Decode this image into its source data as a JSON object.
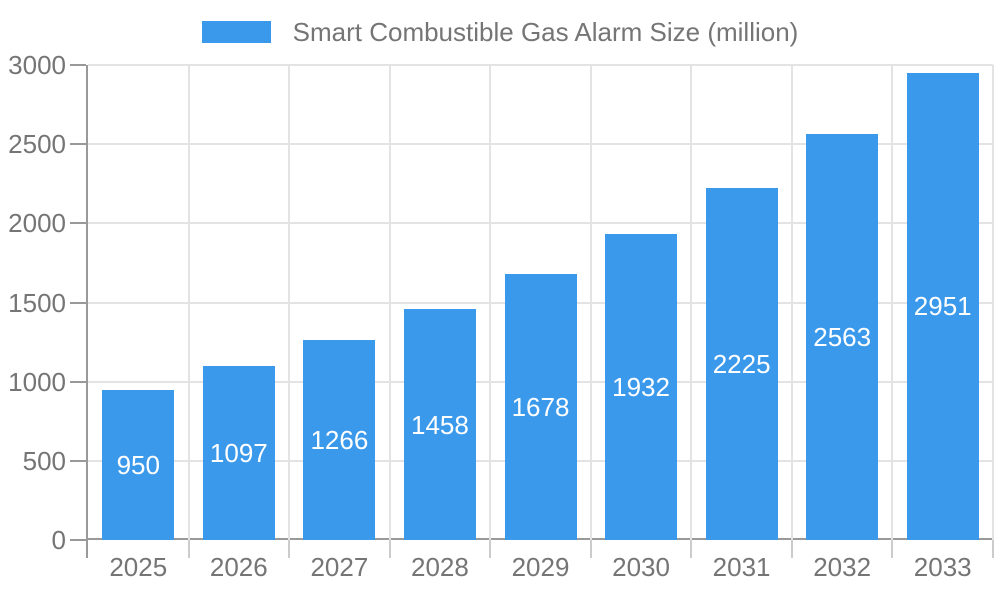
{
  "legend": {
    "label": "Smart Combustible Gas Alarm Size (million)"
  },
  "chart_data": {
    "type": "bar",
    "title": "Smart Combustible Gas Alarm Size (million)",
    "categories": [
      "2025",
      "2026",
      "2027",
      "2028",
      "2029",
      "2030",
      "2031",
      "2032",
      "2033"
    ],
    "values": [
      950,
      1097,
      1266,
      1458,
      1678,
      1932,
      2225,
      2563,
      2951
    ],
    "xlabel": "",
    "ylabel": "",
    "ylim": [
      0,
      3000
    ],
    "yticks": [
      0,
      500,
      1000,
      1500,
      2000,
      2500,
      3000
    ],
    "grid": true,
    "legend_position": "top",
    "colors": {
      "bar": "#3b99ec",
      "value_label": "#ffffff",
      "axis_text": "#757575",
      "grid_line": "#e3e3e3",
      "axis_line": "#999999",
      "x_tick": "#cccccc"
    }
  }
}
